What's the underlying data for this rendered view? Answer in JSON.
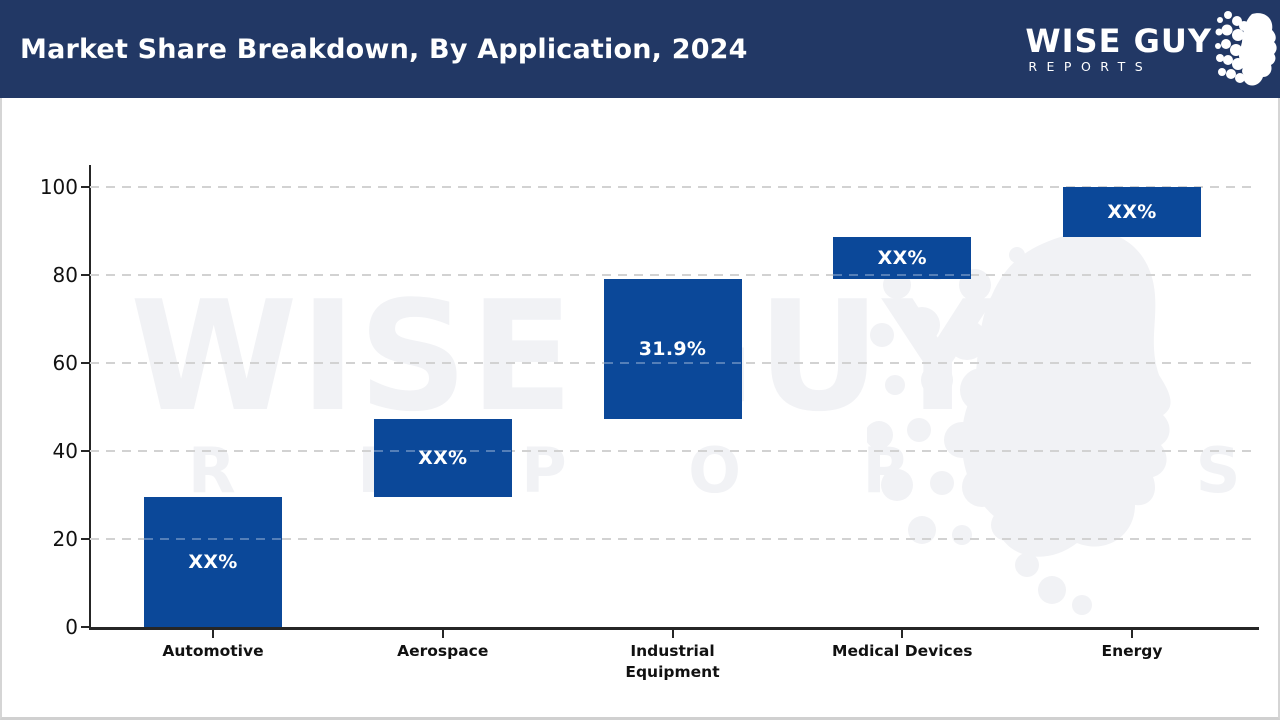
{
  "header": {
    "title": "Market Share Breakdown, By Application, 2024",
    "logo": {
      "wordmark": "WISE GUY",
      "subtext": "REPORTS"
    }
  },
  "watermark": {
    "line1": "WISE GUY",
    "line2": "R E P O R T S"
  },
  "colors": {
    "header_bg": "#223865",
    "bar": "#0b4899",
    "gridline": "#d2d2d2",
    "axis": "#262626",
    "bar_label": "#ffffff",
    "tick_label": "#111111",
    "watermark": "#f1f2f5"
  },
  "chart_data": {
    "type": "bar",
    "variant": "waterfall",
    "title": "Market Share Breakdown, By Application, 2024",
    "xlabel": "",
    "ylabel": "",
    "ylim": [
      0,
      105
    ],
    "yticks": [
      0,
      20,
      40,
      60,
      80,
      100
    ],
    "grid": "horizontal-dashed",
    "legend": "none",
    "bar_color": "#0b4899",
    "categories": [
      "Automotive",
      "Aerospace",
      "Industrial Equipment",
      "Medical Devices",
      "Energy"
    ],
    "segments": [
      {
        "category": "Automotive",
        "start": 0,
        "end": 29.5,
        "value": 29.5,
        "label": "XX%"
      },
      {
        "category": "Aerospace",
        "start": 29.5,
        "end": 47.2,
        "value": 17.7,
        "label": "XX%"
      },
      {
        "category": "Industrial Equipment",
        "start": 47.2,
        "end": 79.1,
        "value": 31.9,
        "label": "31.9%"
      },
      {
        "category": "Medical Devices",
        "start": 79.1,
        "end": 88.6,
        "value": 9.5,
        "label": "XX%"
      },
      {
        "category": "Energy",
        "start": 88.6,
        "end": 100,
        "value": 11.4,
        "label": "XX%"
      }
    ]
  }
}
